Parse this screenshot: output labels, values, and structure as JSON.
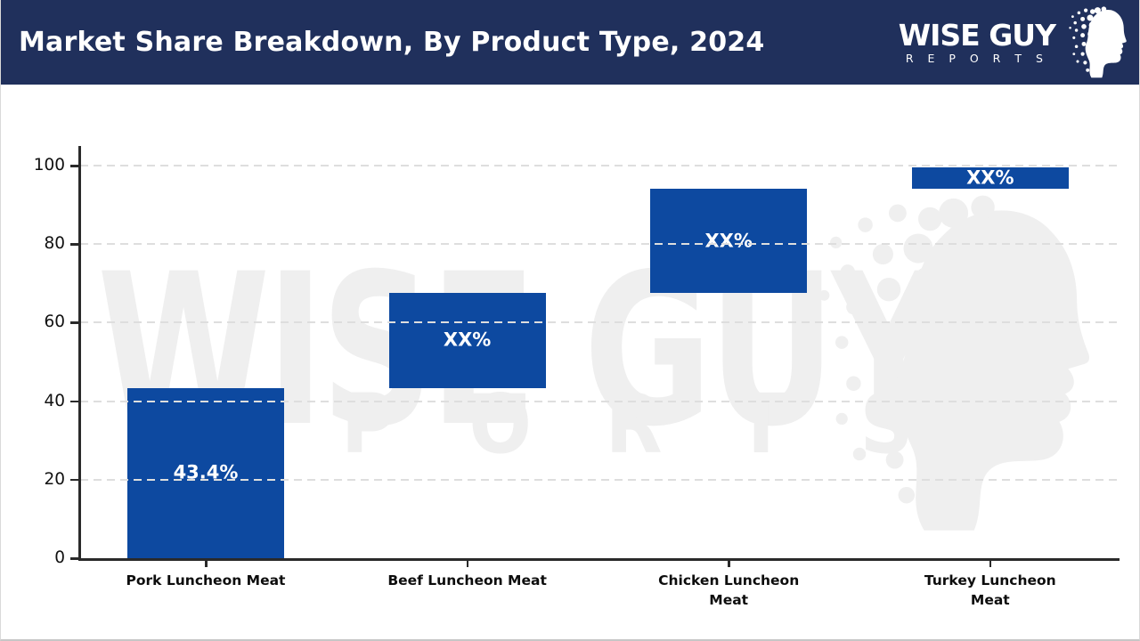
{
  "header": {
    "title": "Market Share Breakdown, By Product Type, 2024",
    "logo": {
      "line1": "WISE GUY",
      "line2": "R E P O R T S"
    }
  },
  "watermark": {
    "line1": "WISE GUY",
    "line2": "P O R T S"
  },
  "colors": {
    "header_bg": "#20305c",
    "bar": "#0d49a0",
    "bar_label": "#ffffff",
    "grid": "#dedede",
    "axis": "#2a2a2a",
    "watermark": "#efefef"
  },
  "chart_data": {
    "type": "bar",
    "subtype": "waterfall",
    "title": "Market Share Breakdown, By Product Type, 2024",
    "categories": [
      "Pork Luncheon Meat",
      "Beef Luncheon Meat",
      "Chicken Luncheon Meat",
      "Turkey Luncheon Meat"
    ],
    "segments": [
      {
        "category": "Pork Luncheon Meat",
        "start": 0,
        "end": 43.4,
        "label": "43.4%"
      },
      {
        "category": "Beef Luncheon Meat",
        "start": 43.4,
        "end": 67.5,
        "label": "XX%"
      },
      {
        "category": "Chicken Luncheon Meat",
        "start": 67.5,
        "end": 94.0,
        "label": "XX%"
      },
      {
        "category": "Turkey Luncheon Meat",
        "start": 94.0,
        "end": 99.5,
        "label": "XX%"
      }
    ],
    "values": [
      43.4,
      24.1,
      26.5,
      5.5
    ],
    "xlabel": "",
    "ylabel": "",
    "yticks": [
      0,
      20,
      40,
      60,
      80,
      100
    ],
    "ylim": [
      0,
      105
    ],
    "grid": "horizontal-dashed",
    "legend": "none"
  }
}
